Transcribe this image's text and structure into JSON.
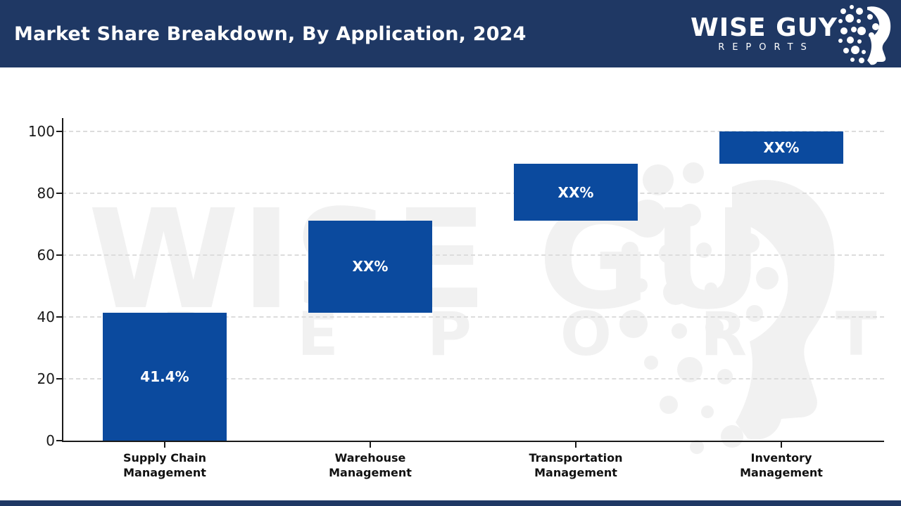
{
  "header": {
    "title": "Market Share Breakdown, By Application, 2024",
    "logo": {
      "line1": "WISE GUY",
      "line2": "REPORTS"
    }
  },
  "watermark": {
    "line1": "WISE GU",
    "line2": "R E P O R T S"
  },
  "colors": {
    "header_bg": "#1F3864",
    "footer_bg": "#1F3864",
    "bar": "#0B4A9E",
    "grid": "#DCDCDC",
    "axis": "#1A1A1A",
    "watermark": "#F1F1F1",
    "bar_label_text": "#FFFFFF"
  },
  "chart_data": {
    "type": "bar",
    "subtype": "waterfall",
    "title": "Market Share Breakdown, By Application, 2024",
    "xlabel": "",
    "ylabel": "",
    "ylim": [
      0,
      100
    ],
    "yticks": [
      0,
      20,
      40,
      60,
      80,
      100
    ],
    "grid": "horizontal-dashed",
    "legend": false,
    "categories": [
      "Supply Chain Management",
      "Warehouse Management",
      "Transportation Management",
      "Inventory Management"
    ],
    "segments": [
      {
        "category_lines": [
          "Supply Chain",
          "Management"
        ],
        "start": 0,
        "end": 41.4,
        "label": "41.4%"
      },
      {
        "category_lines": [
          "Warehouse",
          "Management"
        ],
        "start": 41.4,
        "end": 71.1,
        "label": "XX%"
      },
      {
        "category_lines": [
          "Transportation",
          "Management"
        ],
        "start": 71.1,
        "end": 89.5,
        "label": "XX%"
      },
      {
        "category_lines": [
          "Inventory",
          "Management"
        ],
        "start": 89.5,
        "end": 100,
        "label": "XX%"
      }
    ]
  }
}
